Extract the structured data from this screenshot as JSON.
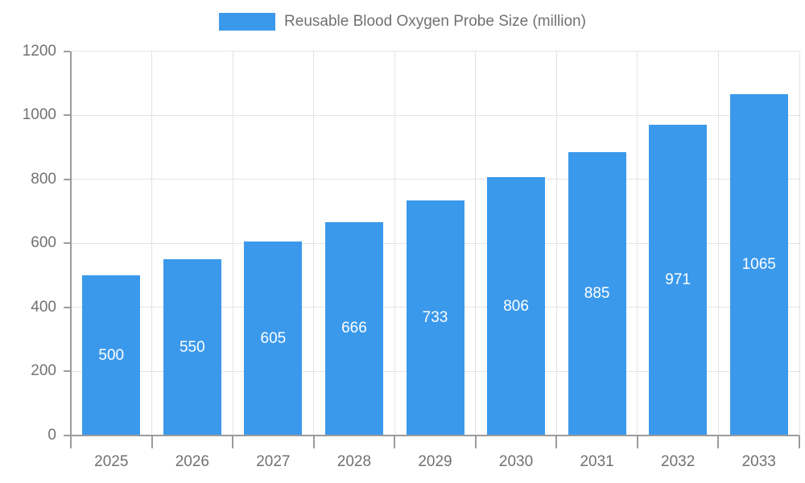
{
  "chart_data": {
    "type": "bar",
    "title": "Reusable Blood Oxygen Probe Size (million)",
    "legend_position": "top",
    "categories": [
      "2025",
      "2026",
      "2027",
      "2028",
      "2029",
      "2030",
      "2031",
      "2032",
      "2033"
    ],
    "values": [
      500,
      550,
      605,
      666,
      733,
      806,
      885,
      971,
      1065
    ],
    "series_name": "Reusable Blood Oxygen Probe Size (million)",
    "xlabel": "",
    "ylabel": "",
    "ylim": [
      0,
      1200
    ],
    "yticks": [
      0,
      200,
      400,
      600,
      800,
      1000,
      1200
    ],
    "grid": true,
    "bar_color": "#3B99EC",
    "bar_label_color": "#ffffff",
    "text_color": "#717171",
    "axis_color": "#9B9B9B",
    "grid_color": "#E3E3E3"
  }
}
